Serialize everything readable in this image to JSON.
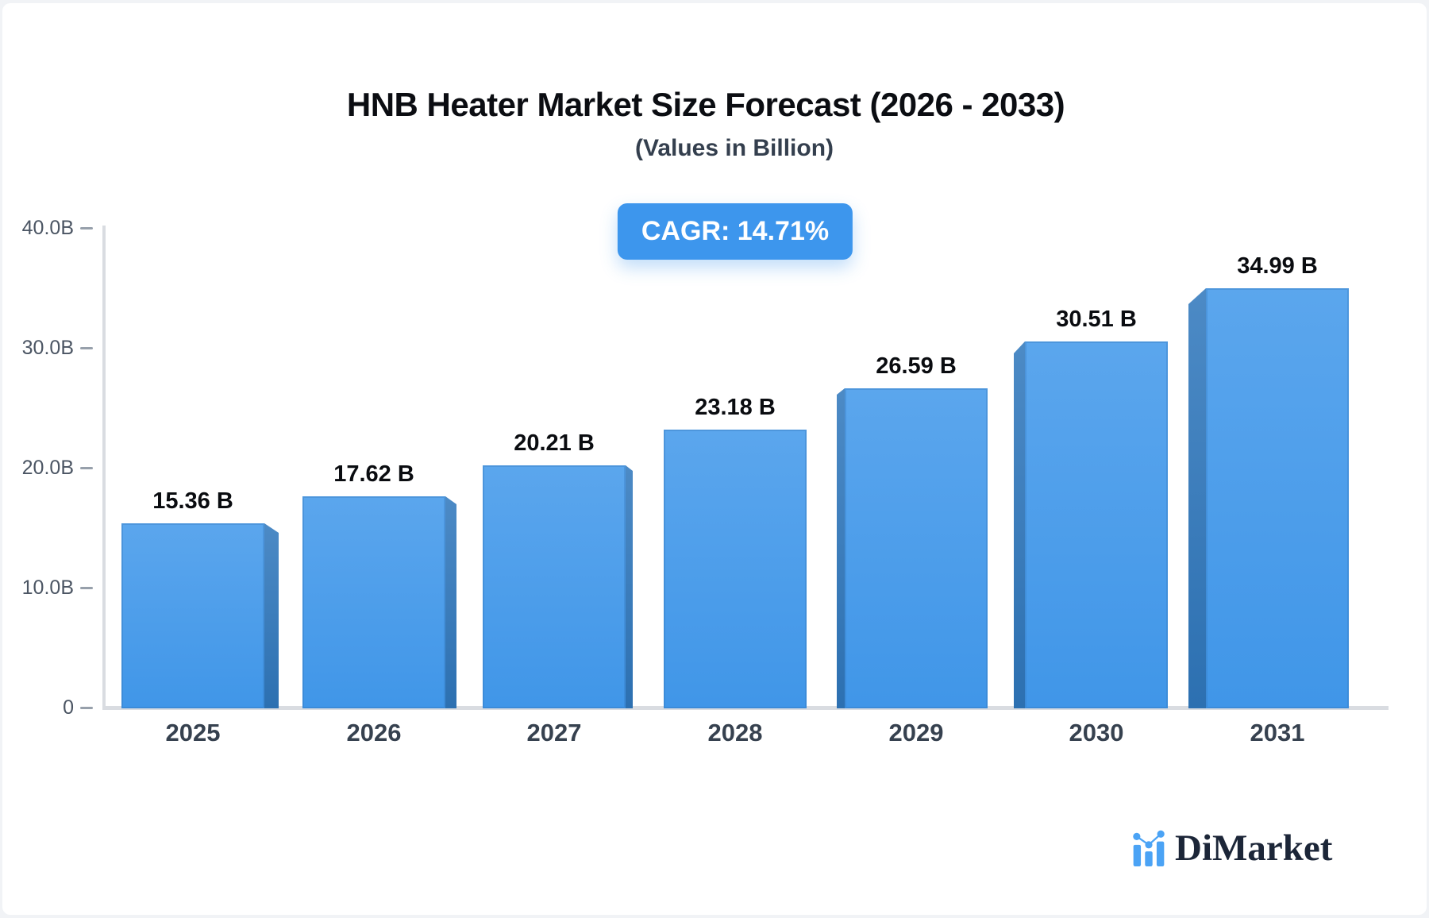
{
  "header": {
    "title": "HNB Heater Market Size Forecast (2026 - 2033)",
    "subtitle": "(Values in Billion)",
    "cagr_badge": "CAGR: 14.71%"
  },
  "chart_data": {
    "type": "bar",
    "title": "HNB Heater Market Size Forecast (2026 - 2033)",
    "subtitle": "(Values in Billion)",
    "annotation": "CAGR: 14.71%",
    "categories": [
      "2025",
      "2026",
      "2027",
      "2028",
      "2029",
      "2030",
      "2031"
    ],
    "values": [
      15.36,
      17.62,
      20.21,
      23.18,
      26.59,
      30.51,
      34.99
    ],
    "value_labels": [
      "15.36 B",
      "17.62 B",
      "20.21 B",
      "23.18 B",
      "26.59 B",
      "30.51 B",
      "34.99 B"
    ],
    "unit": "Billion",
    "ylim": [
      0,
      40
    ],
    "y_ticks": [
      {
        "value": 0,
        "label": "0"
      },
      {
        "value": 10,
        "label": "10.0B"
      },
      {
        "value": 20,
        "label": "20.0B"
      },
      {
        "value": 30,
        "label": "30.0B"
      },
      {
        "value": 40,
        "label": "40.0B"
      }
    ],
    "grid": false,
    "legend": false,
    "style": "3d-bars-center-perspective"
  },
  "brand": {
    "name": "DiMarket",
    "icon": "mini-bar-chart-with-trend-dots"
  },
  "colors": {
    "accent": "#3d96ed",
    "bar_face_top": "#5ba6ed",
    "bar_face_bottom": "#4096e8",
    "bar_side": "#2f77bc",
    "axis_line": "#d9dce1",
    "tick_dash": "#97a0ab",
    "tick_text": "#4b5563",
    "axis_text": "#36414f",
    "value_text": "#0a0c10",
    "title_text": "#0b0d12",
    "subtitle_text": "#343f4e",
    "badge_bg": "#3d96ed",
    "badge_text": "#ffffff",
    "brand_text": "#1c2638",
    "brand_icon": "#4ba3f5",
    "page_bg": "#f1f3f6",
    "card_bg": "#ffffff"
  }
}
